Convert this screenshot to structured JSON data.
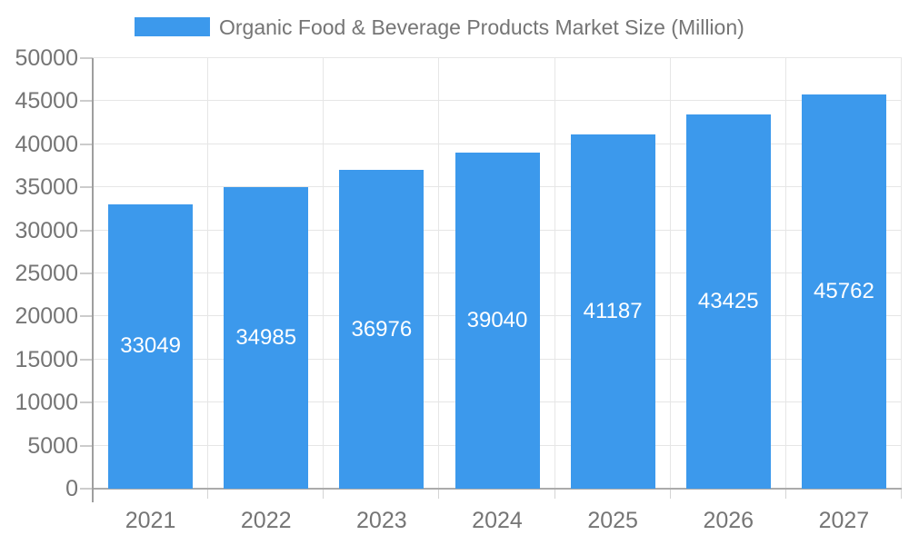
{
  "legend": {
    "label": "Organic Food & Beverage Products Market Size (Million)"
  },
  "colors": {
    "bar": "#3c99ec",
    "grid": "#e6e6e6",
    "axis": "#9e9e9e",
    "text": "#757575",
    "value_label": "#ffffff",
    "background": "#ffffff"
  },
  "chart_data": {
    "type": "bar",
    "title": "Organic Food & Beverage Products Market Size (Million)",
    "categories": [
      "2021",
      "2022",
      "2023",
      "2024",
      "2025",
      "2026",
      "2027"
    ],
    "values": [
      33049,
      34985,
      36976,
      39040,
      41187,
      43425,
      45762
    ],
    "value_labels": [
      "33049",
      "34985",
      "36976",
      "39040",
      "41187",
      "43425",
      "45762"
    ],
    "xlabel": "",
    "ylabel": "",
    "ylim": [
      0,
      50000
    ],
    "ytick_step": 5000,
    "yticks": [
      0,
      5000,
      10000,
      15000,
      20000,
      25000,
      30000,
      35000,
      40000,
      45000,
      50000
    ],
    "grid": true,
    "legend_position": "top",
    "value_labels_inside_bars": true
  }
}
